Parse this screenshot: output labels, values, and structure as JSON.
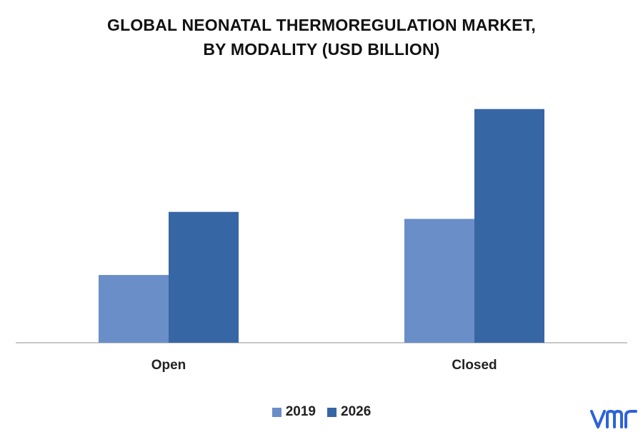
{
  "chart_data": {
    "type": "bar",
    "title_lines": [
      "GLOBAL NEONATAL THERMOREGULATION MARKET,",
      "BY MODALITY (USD BILLION)"
    ],
    "categories": [
      "Open",
      "Closed"
    ],
    "series": [
      {
        "name": "2019",
        "values": [
          0.29,
          0.53
        ],
        "color": "#6a8ec7"
      },
      {
        "name": "2026",
        "values": [
          0.56,
          1.0
        ],
        "color": "#3766a5"
      }
    ],
    "ylim": [
      0,
      1.1
    ],
    "grid": false,
    "legend": "bottom"
  },
  "logo": {
    "icon": "vmr-logo-icon",
    "color": "#2e62d9"
  }
}
